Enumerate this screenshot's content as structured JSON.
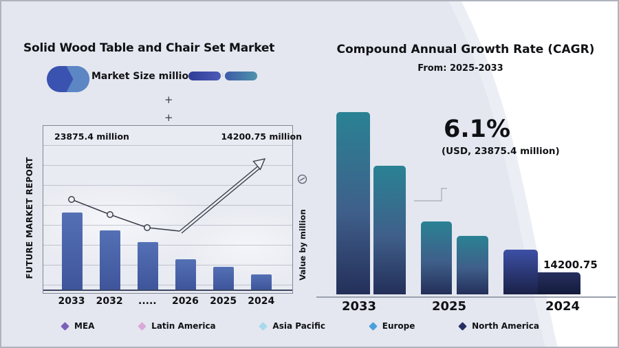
{
  "header": {
    "title": "Solid Wood Table and Chair Set Market",
    "legend_label": "Market Size million",
    "ratio_separator": ":",
    "plus_marks": [
      "+",
      "+"
    ]
  },
  "left_chart": {
    "start_value_label": "23875.4 million",
    "end_value_label": "14200.75 million",
    "x_labels": [
      "2033",
      "2032",
      ".....",
      "2026",
      "2025",
      "2024"
    ],
    "side_label": "FUTURE MARKET REPORT",
    "y_axis_label": "Value by million"
  },
  "right_chart": {
    "title": "Compound Annual Growth Rate (CAGR)",
    "subtitle": "From: 2025-2033",
    "cagr_value": "6.1%",
    "cagr_detail": "(USD, 23875.4 million)",
    "annotation_value": "14200.75",
    "x_labels": [
      "2033",
      "2025",
      "2024"
    ]
  },
  "region_legend": {
    "items": [
      {
        "label": "MEA",
        "color": "#7a62b8"
      },
      {
        "label": "Latin America",
        "color": "#d9a9da"
      },
      {
        "label": "Asia Pacific",
        "color": "#a6d9ec"
      },
      {
        "label": "Europe",
        "color": "#4aa0dc"
      },
      {
        "label": "North America",
        "color": "#262f63"
      }
    ]
  },
  "colors": {
    "canvas_bg": "#e4e7ef",
    "left_bar_top": "#5470b5",
    "left_bar_bottom": "#3f559b",
    "right_bar_teal_top": "#2a8294",
    "right_bar_mid": "#3f5f8a",
    "right_bar_bottom": "#232f59",
    "bar_2024_left": "#3d50a5",
    "bar_2024_right": "#131b3b",
    "trend_stroke": "#3a3f4a"
  },
  "chart_data": [
    {
      "type": "bar",
      "title": "Market Size million",
      "categories": [
        "2033",
        "2032",
        ".....",
        "2026",
        "2025",
        "2024"
      ],
      "values": [
        112,
        86,
        69,
        44,
        33,
        22
      ],
      "values_note": "stylized relative heights (px); chart is decorative, endpoints labeled",
      "annotations": {
        "start": "23875.4 million",
        "end": "14200.75 million"
      },
      "ylabel": "Value by million",
      "overlay": "declining line with 3 circle markers over 2033-2026, then double-line arrow rising to top right",
      "grid": true,
      "legend_position": "top-left"
    },
    {
      "type": "bar",
      "title": "Compound Annual Growth Rate (CAGR)",
      "subtitle": "From: 2025-2033",
      "categories": [
        "2033",
        "2025",
        "2024"
      ],
      "series": [
        {
          "name": "primary",
          "values": [
            265,
            106,
            65
          ]
        },
        {
          "name": "secondary",
          "values": [
            187,
            85,
            32
          ]
        }
      ],
      "values_note": "stylized relative heights (px), grouped pairs per year",
      "cagr": "6.1%",
      "cagr_detail": "(USD, 23875.4 million)",
      "annotation": {
        "category": "2024",
        "text": "14200.75"
      },
      "grid": false
    }
  ]
}
